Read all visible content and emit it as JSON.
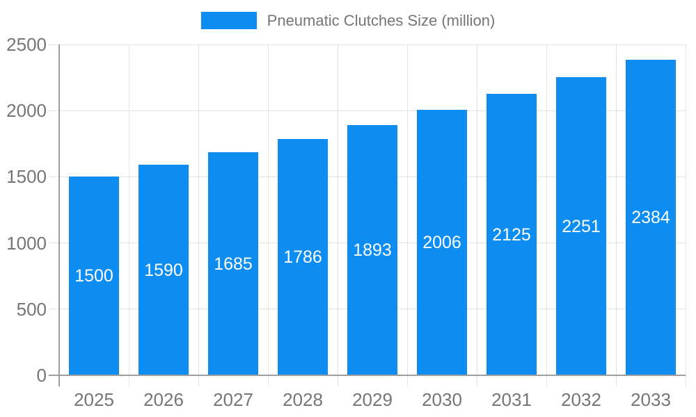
{
  "chart_data": {
    "type": "bar",
    "title": "",
    "series_name": "Pneumatic Clutches Size (million)",
    "categories": [
      "2025",
      "2026",
      "2027",
      "2028",
      "2029",
      "2030",
      "2031",
      "2032",
      "2033"
    ],
    "values": [
      1500,
      1590,
      1685,
      1786,
      1893,
      2006,
      2125,
      2251,
      2384
    ],
    "value_labels": [
      "1500",
      "1590",
      "1685",
      "1786",
      "1893",
      "2006",
      "2125",
      "2251",
      "2384"
    ],
    "xlabel": "",
    "ylabel": "",
    "ylim": [
      0,
      2500
    ],
    "ytick_step": 500,
    "ytick_labels": [
      "0",
      "500",
      "1000",
      "1500",
      "2000",
      "2500"
    ],
    "grid": true,
    "legend_position": "top-center",
    "value_labels_position": "inside-center",
    "colors": {
      "bar": "#0d8df2",
      "bar_value_label": "#ffffff",
      "axis_text": "#757575",
      "legend_text": "#757575",
      "gridline": "#e2e2e2",
      "axis_line": "#9e9e9e",
      "background": "#ffffff"
    }
  }
}
